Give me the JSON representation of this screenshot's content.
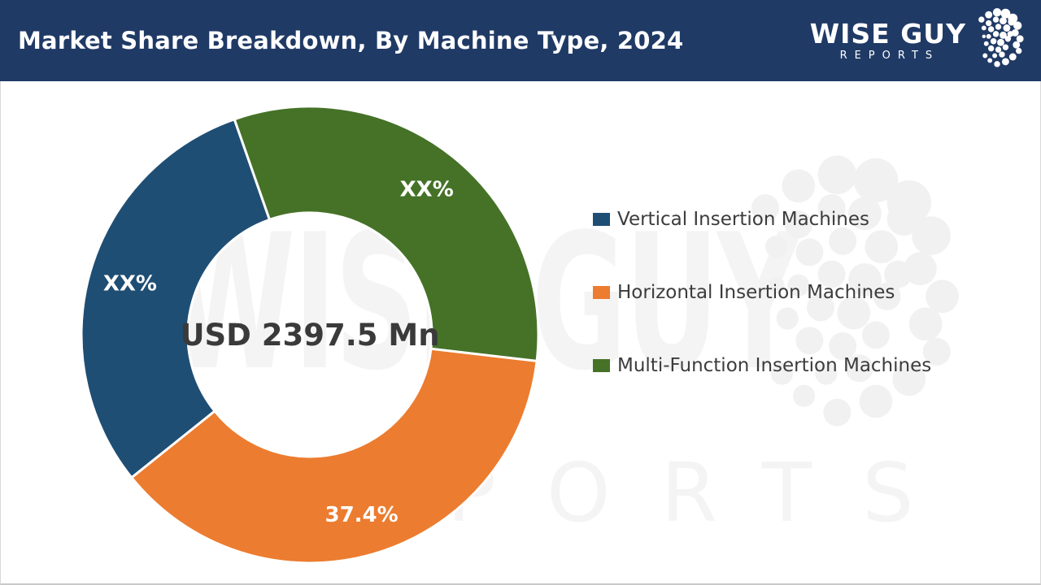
{
  "header": {
    "title": "Market Share Breakdown, By Machine Type, 2024",
    "logo": {
      "brand": "WISE GUY",
      "sub": "REPORTS"
    }
  },
  "watermark": {
    "brand": "WISE GUY",
    "sub": "REPORTS"
  },
  "chart_data": {
    "type": "pie",
    "subtype": "donut",
    "title": "Market Share Breakdown, By Machine Type, 2024",
    "center_label": "USD 2397.5 Mn",
    "start_angle_deg": -19.3,
    "legend_position": "right",
    "segments": [
      {
        "label": "Multi-Function Insertion Machines",
        "display_label": "XX%",
        "value_pct": 32.2,
        "value_masked": true,
        "color": "#457227"
      },
      {
        "label": "Horizontal Insertion Machines",
        "display_label": "37.4%",
        "value_pct": 37.4,
        "value_masked": false,
        "color": "#EC7C2F"
      },
      {
        "label": "Vertical Insertion Machines",
        "display_label": "XX%",
        "value_pct": 30.4,
        "value_masked": true,
        "color": "#1F4E74"
      }
    ]
  },
  "legend": {
    "items": [
      {
        "label": "Vertical Insertion Machines",
        "color": "#1F4E74"
      },
      {
        "label": "Horizontal Insertion Machines",
        "color": "#EC7C2F"
      },
      {
        "label": "Multi-Function Insertion Machines",
        "color": "#457227"
      }
    ]
  },
  "colors": {
    "header_bg": "#203A66",
    "title_text": "#FFFFFF",
    "center_text": "#3A3A3A",
    "legend_text": "#3C3C3C",
    "watermark": "#F4F4F4",
    "border": "#C9C9C9"
  }
}
